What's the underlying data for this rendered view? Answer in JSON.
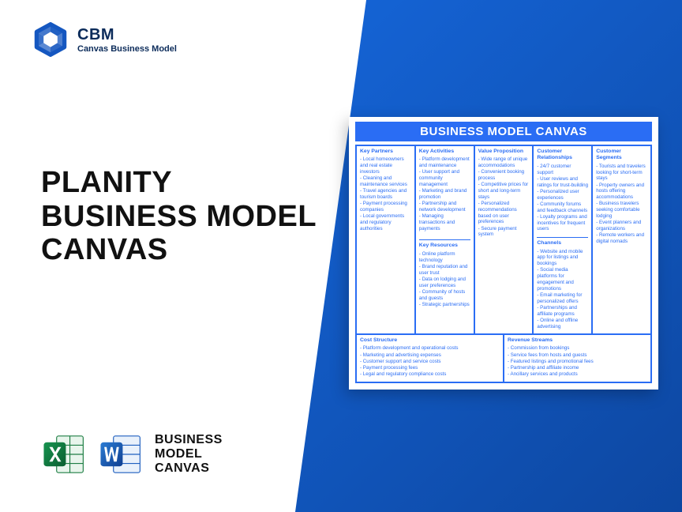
{
  "logo": {
    "abbrev": "CBM",
    "subtitle": "Canvas Business Model"
  },
  "title": {
    "line1": "PLANITY",
    "line2": "BUSINESS MODEL",
    "line3": "CANVAS"
  },
  "footer": {
    "line1": "BUSINESS",
    "line2": "MODEL",
    "line3": "CANVAS"
  },
  "canvas": {
    "title": "BUSINESS MODEL CANVAS",
    "colors": {
      "header_bg": "#2a6df4",
      "header_text": "#ffffff",
      "border": "#2a6df4",
      "cell_text": "#2a6df4",
      "panel_gradient_from": "#1565d8",
      "panel_gradient_to": "#0d47a1"
    },
    "sections": {
      "key_partners": {
        "label": "Key Partners",
        "items": [
          "Local homeowners and real estate investors",
          "Cleaning and maintenance services",
          "Travel agencies and tourism boards",
          "Payment processing companies",
          "Local governments and regulatory authorities"
        ]
      },
      "key_activities": {
        "label": "Key Activities",
        "items": [
          "Platform development and maintenance",
          "User support and community management",
          "Marketing and brand promotion",
          "Partnership and network development",
          "Managing transactions and payments"
        ]
      },
      "key_resources": {
        "label": "Key Resources",
        "items": [
          "Online platform technology",
          "Brand reputation and user trust",
          "Data on lodging and user preferences",
          "Community of hosts and guests",
          "Strategic partnerships"
        ]
      },
      "value_proposition": {
        "label": "Value Proposition",
        "items": [
          "Wide range of unique accommodations",
          "Convenient booking process",
          "Competitive prices for short and long-term stays",
          "Personalized recommendations based on user preferences",
          "Secure payment system"
        ]
      },
      "customer_relationships": {
        "label": "Customer Relationships",
        "items": [
          "24/7 customer support",
          "User reviews and ratings for trust-building",
          "Personalized user experiences",
          "Community forums and feedback channels",
          "Loyalty programs and incentives for frequent users"
        ]
      },
      "channels": {
        "label": "Channels",
        "items": [
          "Website and mobile app for listings and bookings",
          "Social media platforms for engagement and promotions",
          "Email marketing for personalized offers",
          "Partnerships and affiliate programs",
          "Online and offline advertising"
        ]
      },
      "customer_segments": {
        "label": "Customer Segments",
        "items": [
          "Tourists and travelers looking for short-term stays",
          "Property owners and hosts offering accommodations",
          "Business travelers seeking comfortable lodging",
          "Event planners and organizations",
          "Remote workers and digital nomads"
        ]
      },
      "cost_structure": {
        "label": "Cost Structure",
        "items": [
          "Platform development and operational costs",
          "Marketing and advertising expenses",
          "Customer support and service costs",
          "Payment processing fees",
          "Legal and regulatory compliance costs"
        ]
      },
      "revenue_streams": {
        "label": "Revenue Streams",
        "items": [
          "Commission from bookings",
          "Service fees from hosts and guests",
          "Featured listings and promotional fees",
          "Partnership and affiliate income",
          "Ancillary services and products"
        ]
      }
    }
  }
}
